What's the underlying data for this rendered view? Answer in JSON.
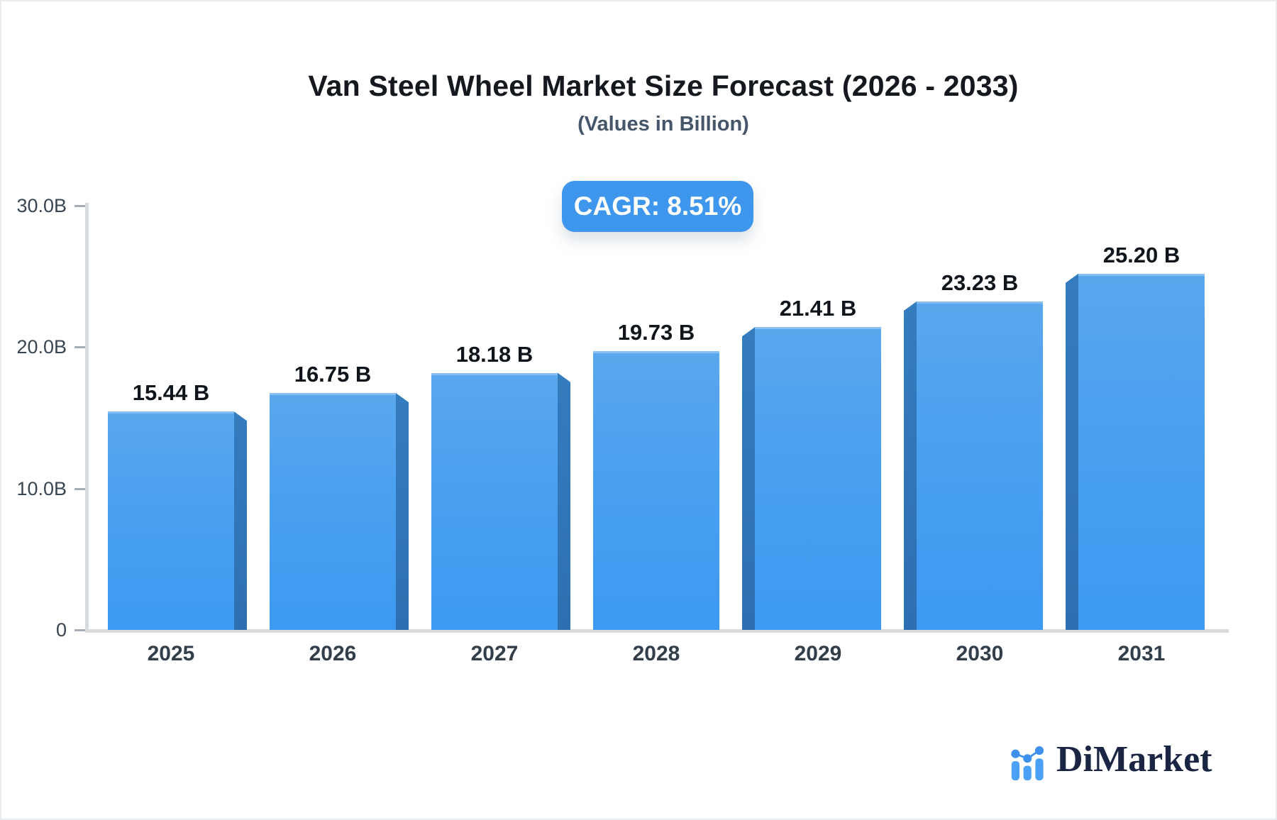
{
  "header": {
    "title": "Van Steel Wheel Market Size Forecast (2026 - 2033)",
    "subtitle": "(Values in Billion)",
    "cagr_label": "CAGR: 8.51%"
  },
  "chart_data": {
    "type": "bar",
    "title": "Van Steel Wheel Market Size Forecast (2026 - 2033)",
    "subtitle": "(Values in Billion)",
    "cagr_percent": 8.51,
    "categories": [
      "2025",
      "2026",
      "2027",
      "2028",
      "2029",
      "2030",
      "2031"
    ],
    "values": [
      15.44,
      16.75,
      18.18,
      19.73,
      21.41,
      23.23,
      25.2
    ],
    "value_labels": [
      "15.44 B",
      "16.75 B",
      "18.18 B",
      "19.73 B",
      "21.41 B",
      "23.23 B",
      "25.20 B"
    ],
    "unit": "Billion",
    "xlabel": "",
    "ylabel": "",
    "ylim": [
      0,
      30
    ],
    "yticks": [
      {
        "value": 0,
        "label": "0"
      },
      {
        "value": 10,
        "label": "10.0B"
      },
      {
        "value": 20,
        "label": "20.0B"
      },
      {
        "value": 30,
        "label": "30.0B"
      }
    ],
    "grid": false,
    "legend": null,
    "style": "3d-bars, sides face away from center",
    "bar_color": "#4aa0f0",
    "bar_side_color": "#2e73b4",
    "axis_color": "#d8dbde"
  },
  "footer": {
    "brand": "DiMarket",
    "brand_icon": "bar-chart-logo-icon",
    "brand_color": "#1a2543",
    "brand_accent": "#4aa1f6"
  }
}
